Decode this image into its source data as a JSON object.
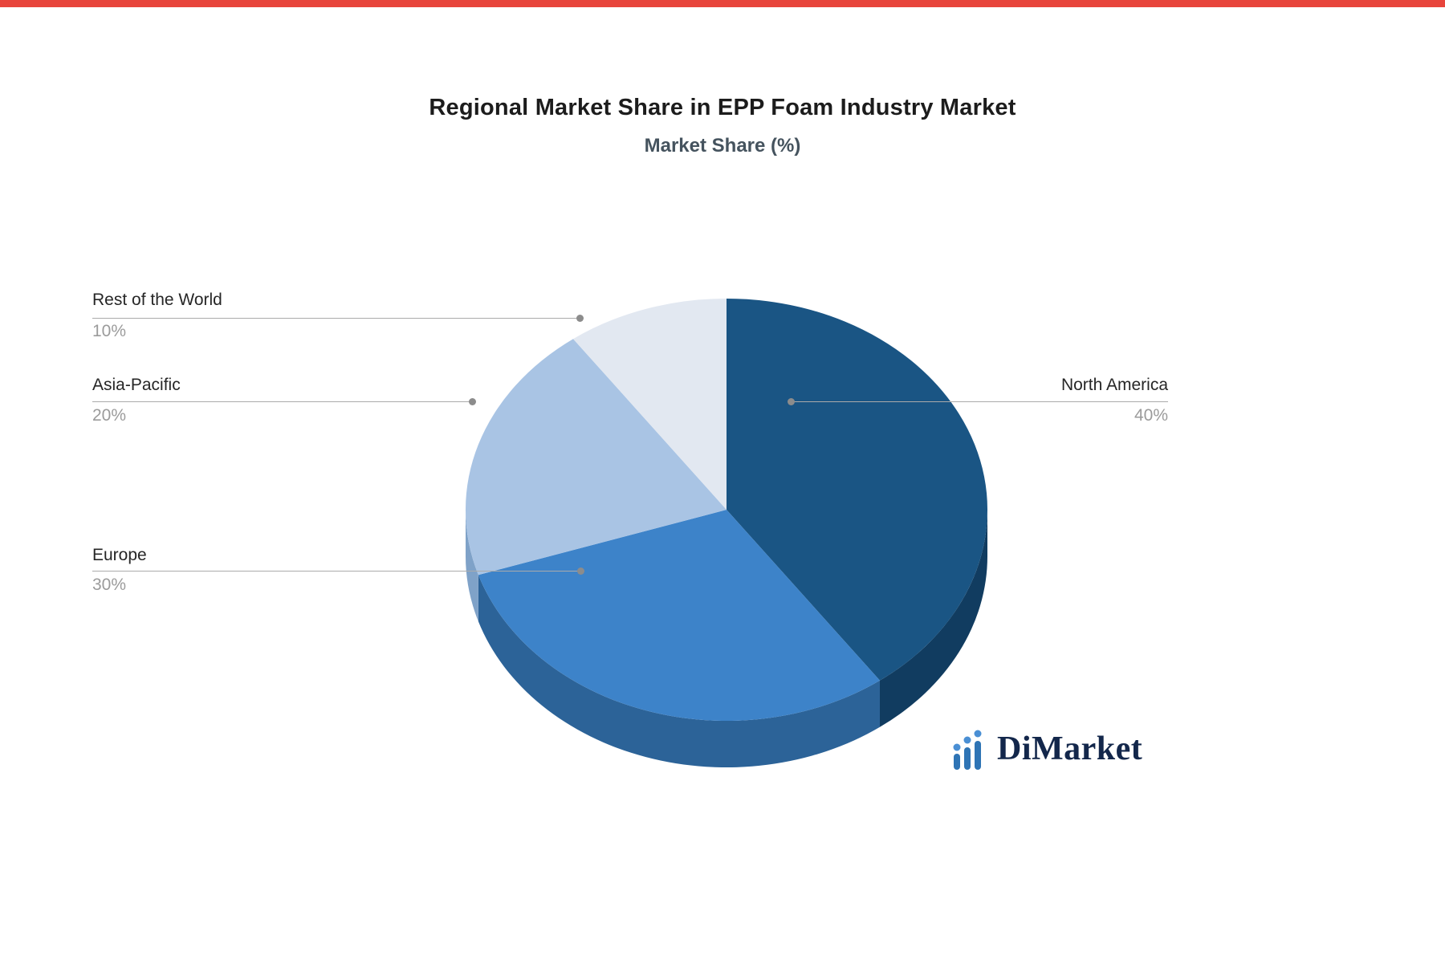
{
  "accent_bar_color": "#e8453c",
  "header": {
    "title": "Regional Market Share in EPP Foam Industry Market",
    "subtitle": "Market Share (%)"
  },
  "chart_data": {
    "type": "pie",
    "title": "Regional Market Share in EPP Foam Industry Market",
    "subtitle": "Market Share (%)",
    "categories": [
      "North America",
      "Europe",
      "Asia-Pacific",
      "Rest of the World"
    ],
    "values": [
      40,
      30,
      20,
      10
    ],
    "value_labels": [
      "40%",
      "30%",
      "20%",
      "10%"
    ],
    "colors": [
      "#1a5584",
      "#3d83c9",
      "#a9c4e4",
      "#e2e8f1"
    ],
    "side_colors": [
      "#113c60",
      "#2c6398",
      "#7fa2c8",
      "#b9c6d8"
    ],
    "start_angle_deg": 0,
    "direction": "clockwise",
    "effect": "3d",
    "legend_position": "none",
    "label_style": "callout-lines"
  },
  "logo": {
    "text": "DiMarket"
  }
}
